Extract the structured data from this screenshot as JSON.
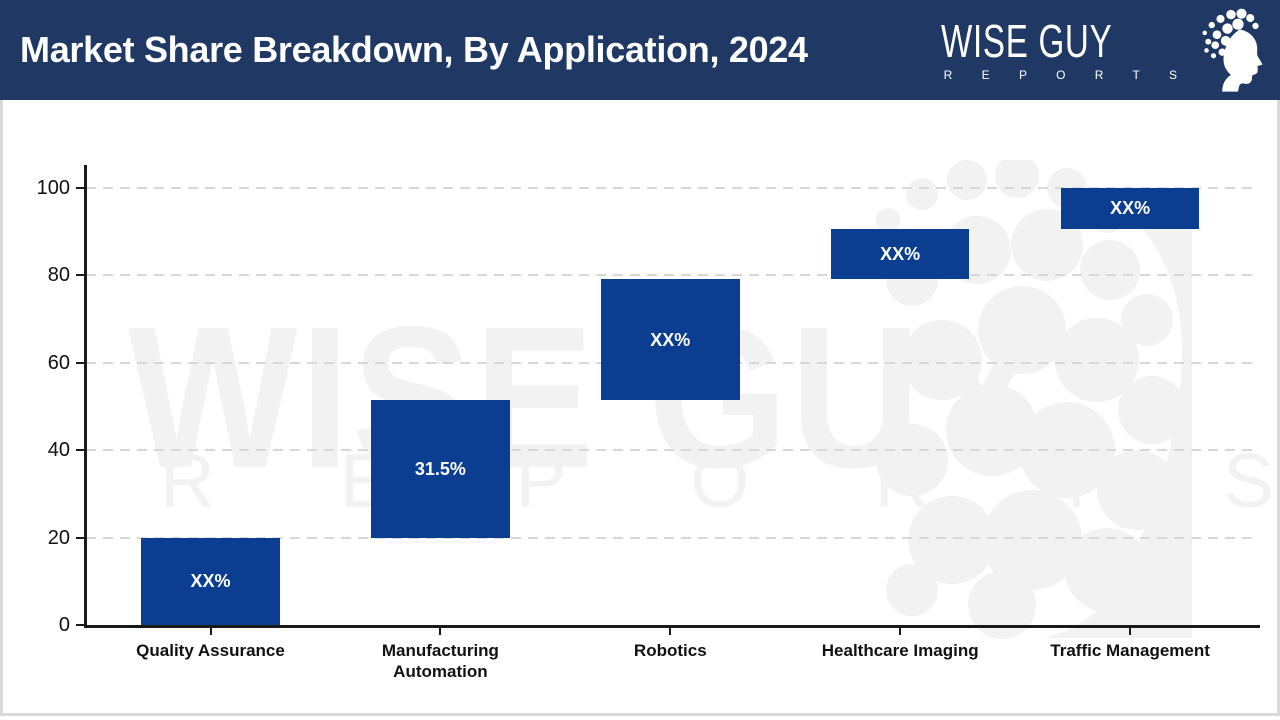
{
  "header": {
    "title": "Market Share Breakdown, By Application, 2024",
    "logo": {
      "wordmark": "WISE GUY",
      "subtext": "R E P O R T S"
    },
    "bg_color": "#1f3864"
  },
  "watermark": {
    "line1": "WISE GUY",
    "line2": "R E P O R T S"
  },
  "chart_data": {
    "type": "bar",
    "subtype": "waterfall-floating-bars",
    "title": "Market Share Breakdown, By Application, 2024",
    "categories": [
      "Quality Assurance",
      "Manufacturing Automation",
      "Robotics",
      "Healthcare Imaging",
      "Traffic Management"
    ],
    "segments": [
      {
        "category": "Quality Assurance",
        "start": 0,
        "end": 20,
        "value_label": "XX%"
      },
      {
        "category": "Manufacturing Automation",
        "start": 20,
        "end": 51.5,
        "value_label": "31.5%"
      },
      {
        "category": "Robotics",
        "start": 51.5,
        "end": 79,
        "value_label": "XX%"
      },
      {
        "category": "Healthcare Imaging",
        "start": 79,
        "end": 90.5,
        "value_label": "XX%"
      },
      {
        "category": "Traffic Management",
        "start": 90.5,
        "end": 100,
        "value_label": "XX%"
      }
    ],
    "y_ticks": [
      0,
      20,
      40,
      60,
      80,
      100
    ],
    "ylim": [
      0,
      105
    ],
    "xlabel": "",
    "ylabel": "",
    "bar_color": "#0b3d91",
    "grid": "horizontal-dashed",
    "gridline_color": "#d8d8d8",
    "axis_color": "#1a1a1a",
    "legend": "none"
  }
}
